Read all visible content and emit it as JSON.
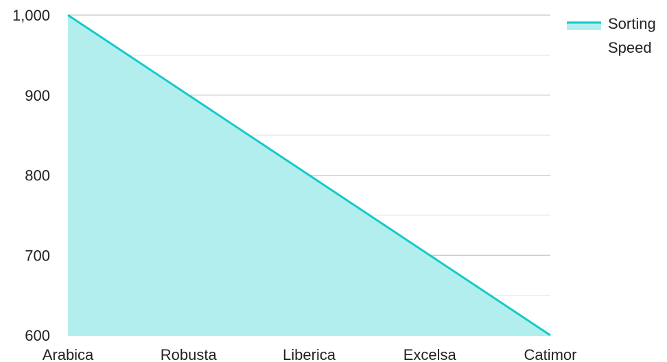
{
  "chart_data": {
    "type": "area",
    "categories": [
      "Arabica",
      "Robusta",
      "Liberica",
      "Excelsa",
      "Catimor"
    ],
    "series": [
      {
        "name": "Sorting Speed",
        "values": [
          1000,
          900,
          800,
          700,
          600
        ]
      }
    ],
    "ylim": [
      600,
      1000
    ],
    "y_ticks": [
      {
        "value": 600,
        "label": "600"
      },
      {
        "value": 700,
        "label": "700"
      },
      {
        "value": 800,
        "label": "800"
      },
      {
        "value": 900,
        "label": "900"
      },
      {
        "value": 1000,
        "label": "1,000"
      }
    ],
    "y_minor_ticks": [
      650,
      750,
      850,
      950
    ],
    "grid": true,
    "legend": {
      "position": "top-right",
      "lines": [
        "Sorting",
        "Speed"
      ]
    },
    "colors": {
      "line": "#16c9c9",
      "fill": "#b2eeee",
      "grid_major": "#b8b8b8",
      "grid_minor": "#e2e2e2",
      "text": "#222222"
    }
  }
}
